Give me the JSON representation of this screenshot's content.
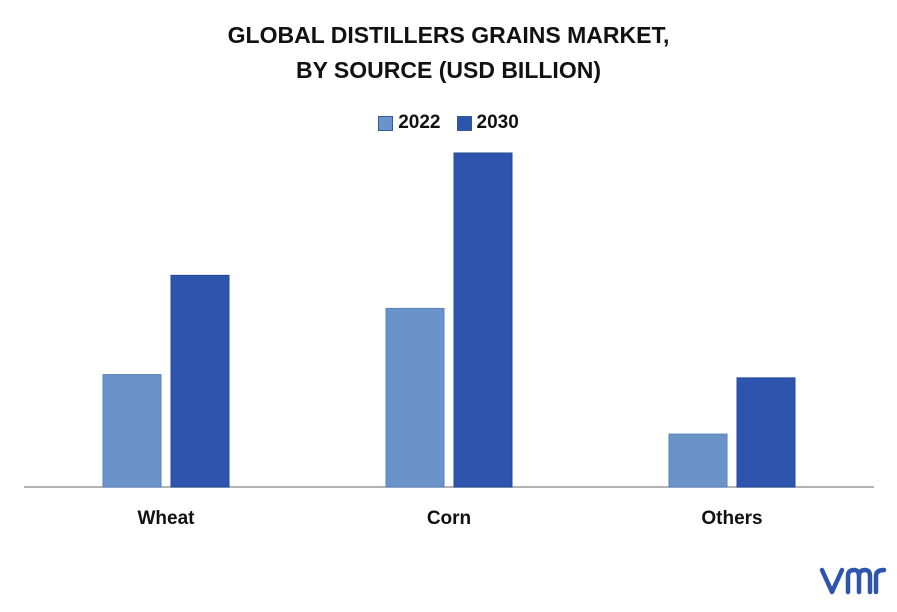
{
  "title_line1": "GLOBAL DISTILLERS GRAINS MARKET,",
  "title_line2": "BY SOURCE (USD BILLION)",
  "legend": [
    {
      "label": "2022",
      "color": "#6a93c9"
    },
    {
      "label": "2030",
      "color": "#2e55ad"
    }
  ],
  "chart_data": {
    "type": "bar",
    "categories": [
      "Wheat",
      "Corn",
      "Others"
    ],
    "series": [
      {
        "name": "2022",
        "values": [
          3.4,
          5.4,
          1.6
        ]
      },
      {
        "name": "2030",
        "values": [
          6.4,
          10.1,
          3.3
        ]
      }
    ],
    "ylim": [
      0,
      10.1
    ],
    "grid": false,
    "legend_position": "top-center",
    "xlabel": "",
    "ylabel": ""
  },
  "logo_text": "vmr"
}
